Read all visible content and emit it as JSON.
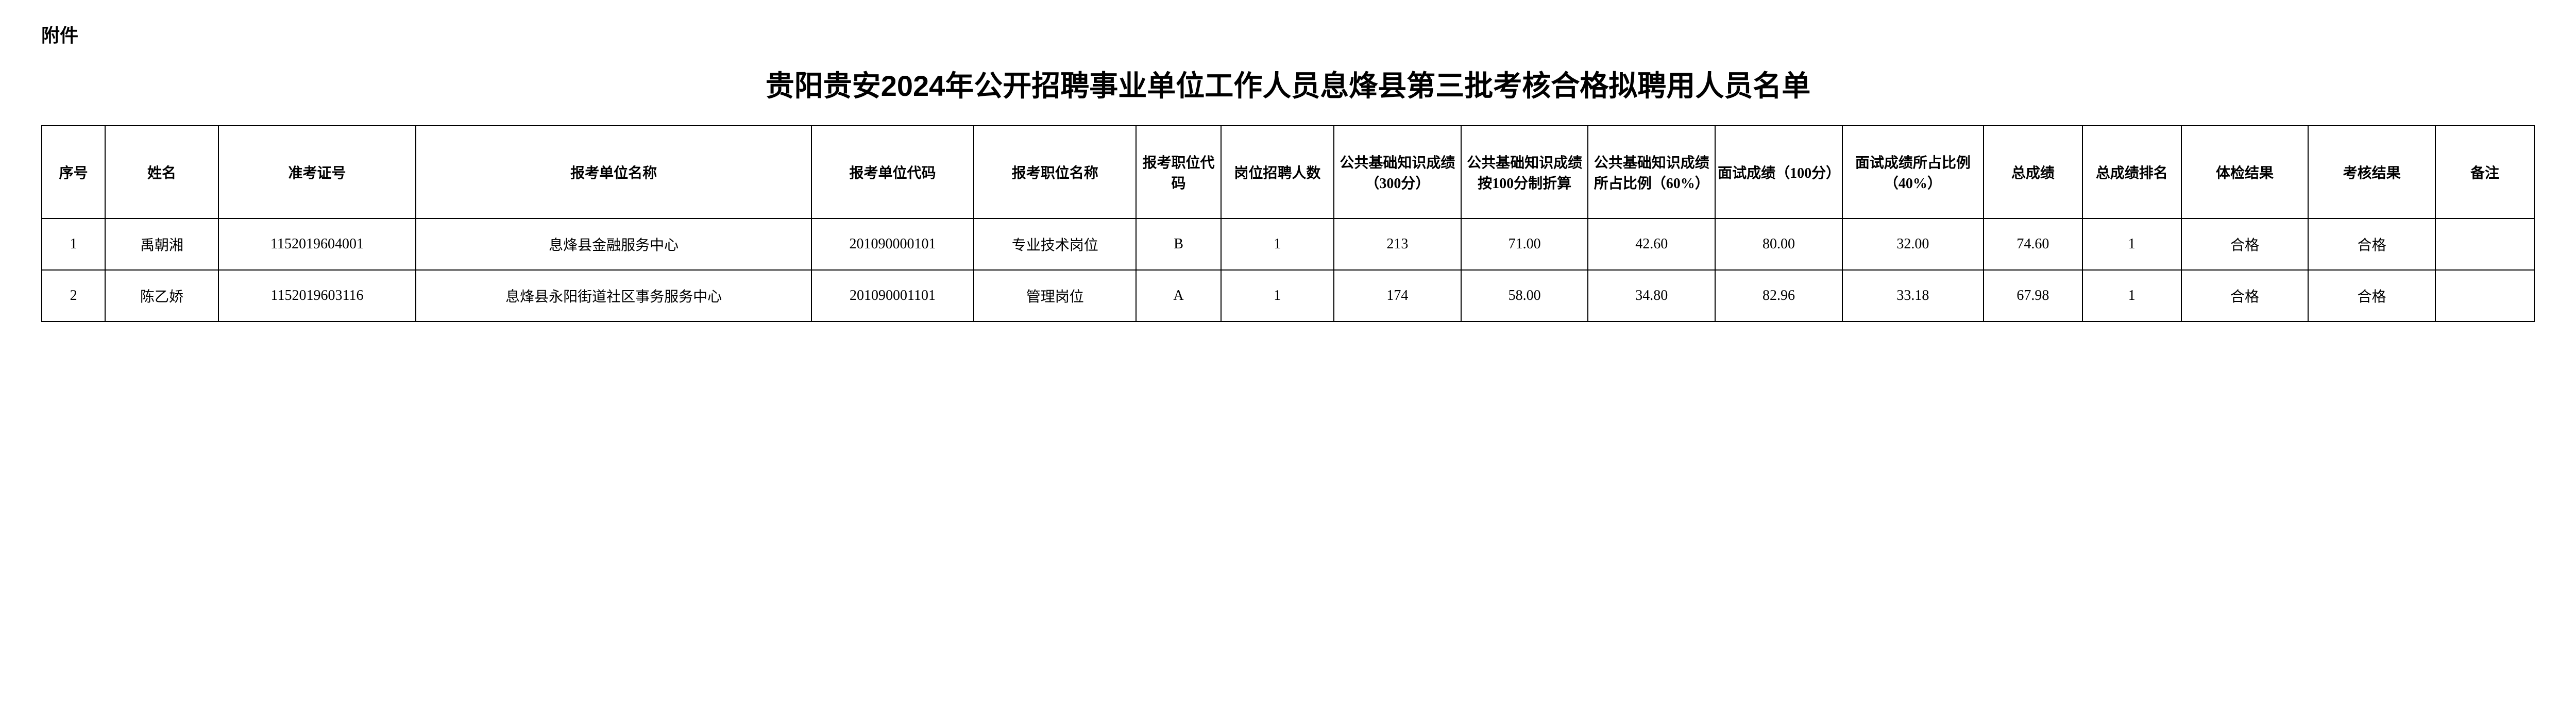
{
  "document": {
    "attachment_label": "附件",
    "title": "贵阳贵安2024年公开招聘事业单位工作人员息烽县第三批考核合格拟聘用人员名单"
  },
  "table": {
    "headers": {
      "seq": "序号",
      "name": "姓名",
      "ticket": "准考证号",
      "unit_name": "报考单位名称",
      "unit_code": "报考单位代码",
      "position_name": "报考职位名称",
      "position_code": "报考职位代码",
      "recruits": "岗位招聘人数",
      "basic_score": "公共基础知识成绩（300分）",
      "basic_convert": "公共基础知识成绩按100分制折算",
      "basic_ratio": "公共基础知识成绩所占比例（60%）",
      "interview_score": "面试成绩（100分）",
      "interview_ratio": "面试成绩所占比例（40%）",
      "total": "总成绩",
      "rank": "总成绩排名",
      "physical": "体检结果",
      "assess": "考核结果",
      "remark": "备注"
    },
    "rows": [
      {
        "seq": "1",
        "name": "禹朝湘",
        "ticket": "1152019604001",
        "unit_name": "息烽县金融服务中心",
        "unit_code": "201090000101",
        "position_name": "专业技术岗位",
        "position_code": "B",
        "recruits": "1",
        "basic_score": "213",
        "basic_convert": "71.00",
        "basic_ratio": "42.60",
        "interview_score": "80.00",
        "interview_ratio": "32.00",
        "total": "74.60",
        "rank": "1",
        "physical": "合格",
        "assess": "合格",
        "remark": ""
      },
      {
        "seq": "2",
        "name": "陈乙娇",
        "ticket": "1152019603116",
        "unit_name": "息烽县永阳街道社区事务服务中心",
        "unit_code": "201090001101",
        "position_name": "管理岗位",
        "position_code": "A",
        "recruits": "1",
        "basic_score": "174",
        "basic_convert": "58.00",
        "basic_ratio": "34.80",
        "interview_score": "82.96",
        "interview_ratio": "33.18",
        "total": "67.98",
        "rank": "1",
        "physical": "合格",
        "assess": "合格",
        "remark": ""
      }
    ]
  }
}
